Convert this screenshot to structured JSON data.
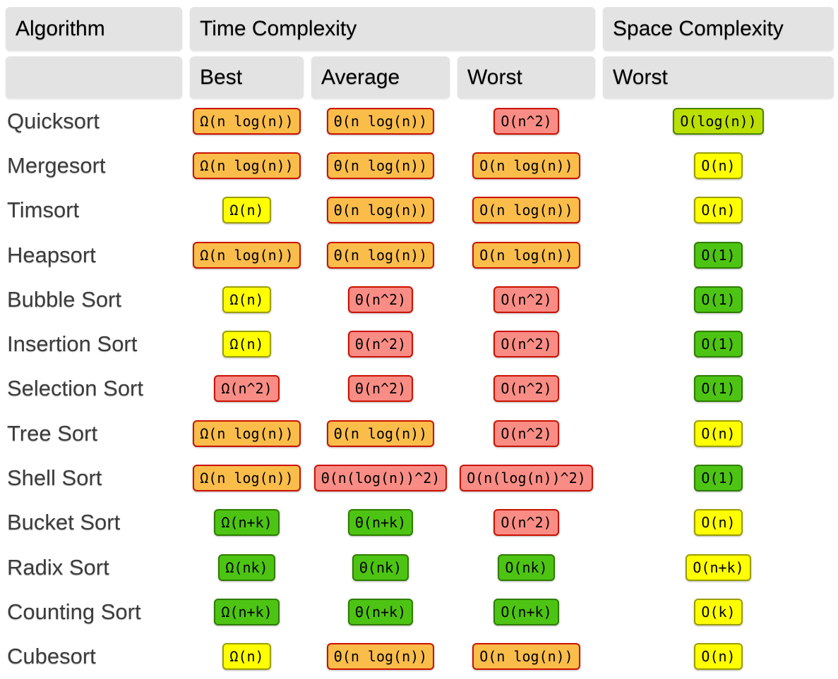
{
  "colors": {
    "header_bg": "#E3E3E3",
    "orange": {
      "bg": "#FABD4A",
      "border": "#CC1100"
    },
    "red": {
      "bg": "#F98D85",
      "border": "#CC1100"
    },
    "yellow": {
      "bg": "#FFFF00",
      "border": "#9A9E00"
    },
    "green": {
      "bg": "#4DC413",
      "border": "#2E7D00"
    },
    "yellowgreen": {
      "bg": "#BBDF00",
      "border": "#4C8500"
    }
  },
  "chart_data": {
    "type": "table",
    "header_groups": [
      {
        "label": "Algorithm",
        "span": 1
      },
      {
        "label": "Time Complexity",
        "span": 3
      },
      {
        "label": "Space Complexity",
        "span": 1
      }
    ],
    "subheaders": [
      "",
      "Best",
      "Average",
      "Worst",
      "Worst"
    ],
    "rows": [
      {
        "algorithm": "Quicksort",
        "cells": [
          {
            "text": "Ω(n log(n))",
            "color": "orange"
          },
          {
            "text": "Θ(n log(n))",
            "color": "orange"
          },
          {
            "text": "O(n^2)",
            "color": "red"
          },
          {
            "text": "O(log(n))",
            "color": "yellowgreen"
          }
        ]
      },
      {
        "algorithm": "Mergesort",
        "cells": [
          {
            "text": "Ω(n log(n))",
            "color": "orange"
          },
          {
            "text": "Θ(n log(n))",
            "color": "orange"
          },
          {
            "text": "O(n log(n))",
            "color": "orange"
          },
          {
            "text": "O(n)",
            "color": "yellow"
          }
        ]
      },
      {
        "algorithm": "Timsort",
        "cells": [
          {
            "text": "Ω(n)",
            "color": "yellow"
          },
          {
            "text": "Θ(n log(n))",
            "color": "orange"
          },
          {
            "text": "O(n log(n))",
            "color": "orange"
          },
          {
            "text": "O(n)",
            "color": "yellow"
          }
        ]
      },
      {
        "algorithm": "Heapsort",
        "cells": [
          {
            "text": "Ω(n log(n))",
            "color": "orange"
          },
          {
            "text": "Θ(n log(n))",
            "color": "orange"
          },
          {
            "text": "O(n log(n))",
            "color": "orange"
          },
          {
            "text": "O(1)",
            "color": "green"
          }
        ]
      },
      {
        "algorithm": "Bubble Sort",
        "cells": [
          {
            "text": "Ω(n)",
            "color": "yellow"
          },
          {
            "text": "Θ(n^2)",
            "color": "red"
          },
          {
            "text": "O(n^2)",
            "color": "red"
          },
          {
            "text": "O(1)",
            "color": "green"
          }
        ]
      },
      {
        "algorithm": "Insertion Sort",
        "cells": [
          {
            "text": "Ω(n)",
            "color": "yellow"
          },
          {
            "text": "Θ(n^2)",
            "color": "red"
          },
          {
            "text": "O(n^2)",
            "color": "red"
          },
          {
            "text": "O(1)",
            "color": "green"
          }
        ]
      },
      {
        "algorithm": "Selection Sort",
        "cells": [
          {
            "text": "Ω(n^2)",
            "color": "red"
          },
          {
            "text": "Θ(n^2)",
            "color": "red"
          },
          {
            "text": "O(n^2)",
            "color": "red"
          },
          {
            "text": "O(1)",
            "color": "green"
          }
        ]
      },
      {
        "algorithm": "Tree Sort",
        "cells": [
          {
            "text": "Ω(n log(n))",
            "color": "orange"
          },
          {
            "text": "Θ(n log(n))",
            "color": "orange"
          },
          {
            "text": "O(n^2)",
            "color": "red"
          },
          {
            "text": "O(n)",
            "color": "yellow"
          }
        ]
      },
      {
        "algorithm": "Shell Sort",
        "cells": [
          {
            "text": "Ω(n log(n))",
            "color": "orange"
          },
          {
            "text": "Θ(n(log(n))^2)",
            "color": "red"
          },
          {
            "text": "O(n(log(n))^2)",
            "color": "red"
          },
          {
            "text": "O(1)",
            "color": "green"
          }
        ]
      },
      {
        "algorithm": "Bucket Sort",
        "cells": [
          {
            "text": "Ω(n+k)",
            "color": "green"
          },
          {
            "text": "Θ(n+k)",
            "color": "green"
          },
          {
            "text": "O(n^2)",
            "color": "red"
          },
          {
            "text": "O(n)",
            "color": "yellow"
          }
        ]
      },
      {
        "algorithm": "Radix Sort",
        "cells": [
          {
            "text": "Ω(nk)",
            "color": "green"
          },
          {
            "text": "Θ(nk)",
            "color": "green"
          },
          {
            "text": "O(nk)",
            "color": "green"
          },
          {
            "text": "O(n+k)",
            "color": "yellow"
          }
        ]
      },
      {
        "algorithm": "Counting Sort",
        "cells": [
          {
            "text": "Ω(n+k)",
            "color": "green"
          },
          {
            "text": "Θ(n+k)",
            "color": "green"
          },
          {
            "text": "O(n+k)",
            "color": "green"
          },
          {
            "text": "O(k)",
            "color": "yellow"
          }
        ]
      },
      {
        "algorithm": "Cubesort",
        "cells": [
          {
            "text": "Ω(n)",
            "color": "yellow"
          },
          {
            "text": "Θ(n log(n))",
            "color": "orange"
          },
          {
            "text": "O(n log(n))",
            "color": "orange"
          },
          {
            "text": "O(n)",
            "color": "yellow"
          }
        ]
      }
    ]
  }
}
